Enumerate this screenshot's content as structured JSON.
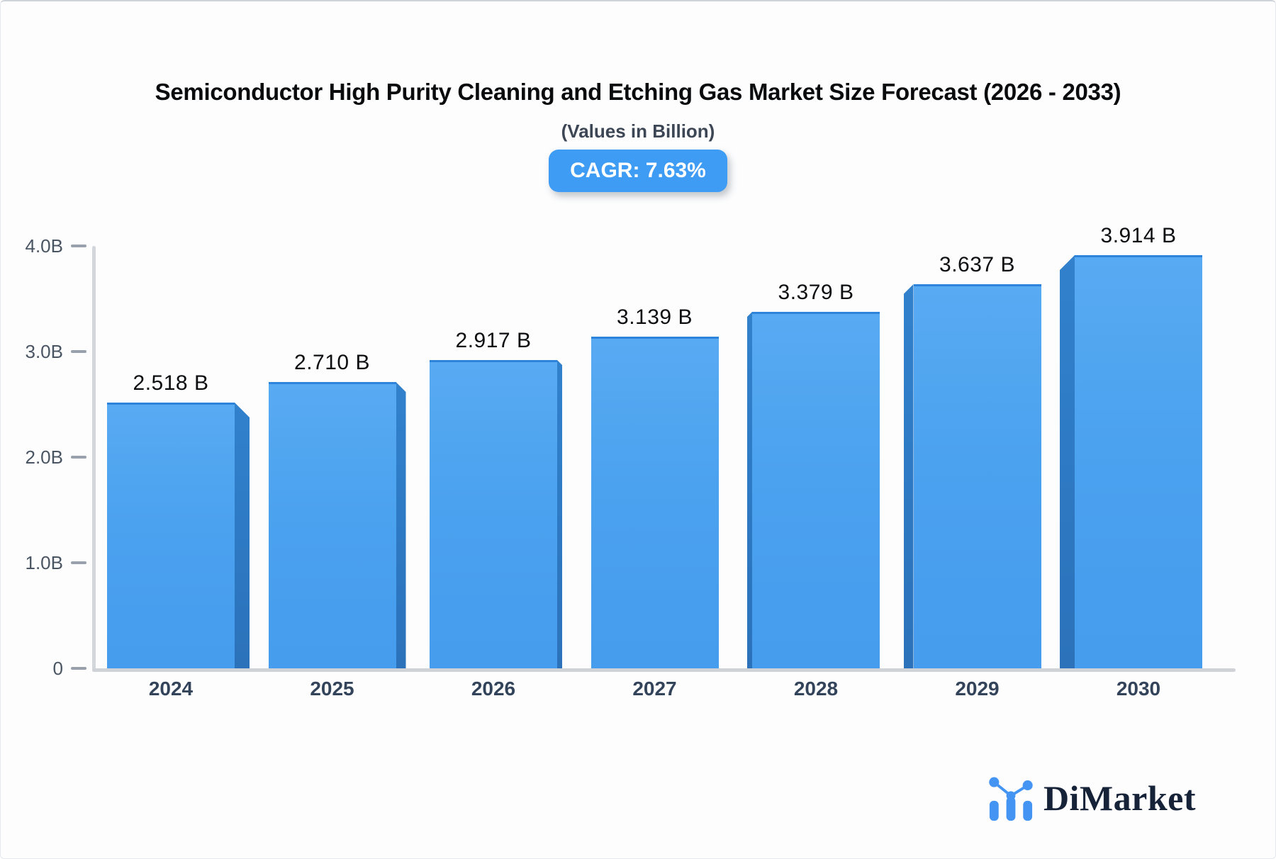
{
  "page": {
    "title": "Semiconductor High Purity Cleaning and Etching Gas Market Size Forecast (2026 - 2033)",
    "subtitle": "(Values in Billion)",
    "cagr_label": "CAGR: 7.63%"
  },
  "brand": {
    "name": "DiMarket",
    "icon": "bar-line-chart-icon"
  },
  "chart_data": {
    "type": "bar",
    "title": "Semiconductor High Purity Cleaning and Etching Gas Market Size Forecast (2026 - 2033)",
    "subtitle": "(Values in Billion)",
    "cagr_percent": 7.63,
    "categories": [
      "2024",
      "2025",
      "2026",
      "2027",
      "2028",
      "2029",
      "2030"
    ],
    "values": [
      2.518,
      2.71,
      2.917,
      3.139,
      3.379,
      3.637,
      3.914
    ],
    "value_labels": [
      "2.518 B",
      "2.710 B",
      "2.917 B",
      "3.139 B",
      "3.379 B",
      "3.637 B",
      "3.914 B"
    ],
    "ylim": [
      0,
      4.0
    ],
    "yticks": [
      {
        "value": 4.0,
        "label": "4.0B"
      },
      {
        "value": 3.0,
        "label": "3.0B"
      },
      {
        "value": 2.0,
        "label": "2.0B"
      },
      {
        "value": 1.0,
        "label": "1.0B"
      },
      {
        "value": 0,
        "label": "0"
      }
    ],
    "grid": false,
    "legend": false,
    "style": "pseudo-3d bars with center vanishing point",
    "colors": {
      "bar_face": "#4da3f0",
      "bar_face_top": "#58aaf2",
      "bar_top_edge": "#2d84da",
      "bar_side": "#2e78c2",
      "axis_line": "#d3d6db",
      "tick_mark": "#98a1ab",
      "tick_label": "#4a5563",
      "category_label": "#32435a",
      "value_label": "#0d0e10",
      "badge_bg": "#3f9cf4",
      "badge_text": "#ffffff",
      "logo_blue": "#4495f3",
      "logo_navy": "#152238"
    }
  }
}
